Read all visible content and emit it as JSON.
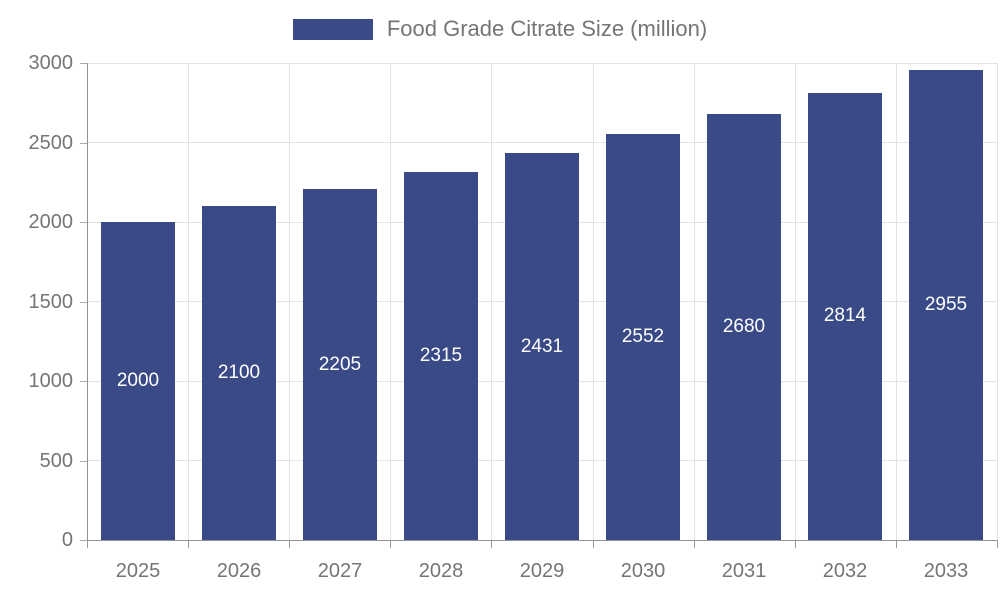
{
  "legend": {
    "label": "Food Grade Citrate Size (million)"
  },
  "colors": {
    "bar": "#394a87",
    "axis_label": "#757575",
    "axis_line": "#919191",
    "grid_line": "#e3e3e3",
    "value_label": "#ffffff",
    "background": "#ffffff"
  },
  "chart_data": {
    "type": "bar",
    "title": "",
    "categories": [
      "2025",
      "2026",
      "2027",
      "2028",
      "2029",
      "2030",
      "2031",
      "2032",
      "2033"
    ],
    "series": [
      {
        "name": "Food Grade Citrate Size (million)",
        "values": [
          2000,
          2100,
          2205,
          2315,
          2431,
          2552,
          2680,
          2814,
          2955
        ]
      }
    ],
    "xlabel": "",
    "ylabel": "",
    "ylim": [
      0,
      3000
    ],
    "yticks": [
      0,
      500,
      1000,
      1500,
      2000,
      2500,
      3000
    ],
    "grid": true,
    "legend_position": "top-center",
    "value_label_position": "inside-center"
  }
}
